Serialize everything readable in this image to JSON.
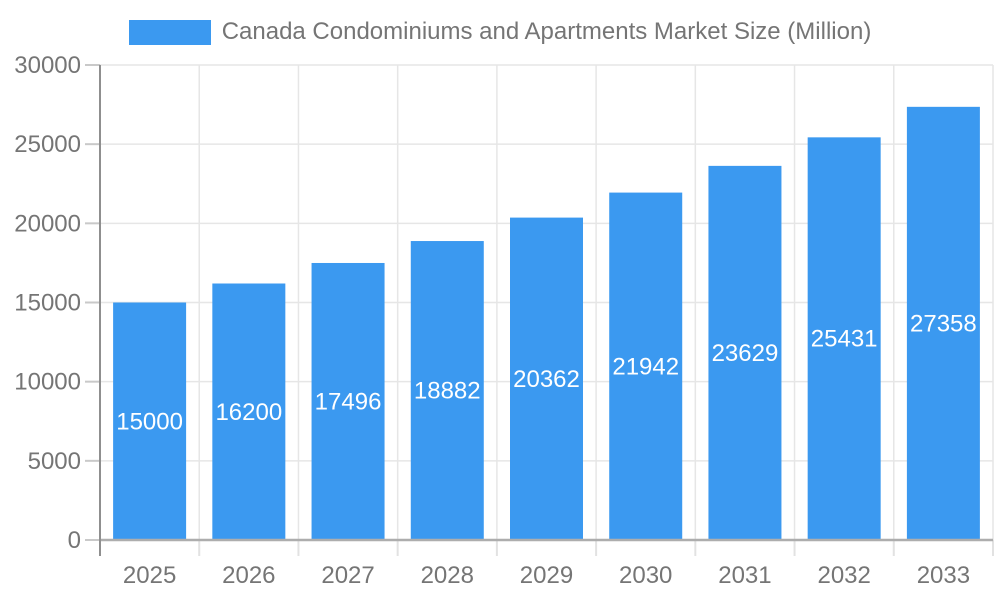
{
  "chart_data": {
    "type": "bar",
    "title": "Canada Condominiums and Apartments Market Size (Million)",
    "categories": [
      "2025",
      "2026",
      "2027",
      "2028",
      "2029",
      "2030",
      "2031",
      "2032",
      "2033"
    ],
    "values": [
      15000,
      16200,
      17496,
      18882,
      20362,
      21942,
      23629,
      25431,
      27358
    ],
    "value_labels": [
      "15000",
      "16200",
      "17496",
      "18882",
      "20362",
      "21942",
      "23629",
      "25431",
      "27358"
    ],
    "xlabel": "",
    "ylabel": "",
    "ylim": [
      0,
      30000
    ],
    "yticks": [
      0,
      5000,
      10000,
      15000,
      20000,
      25000,
      30000
    ],
    "ytick_labels": [
      "0",
      "5000",
      "10000",
      "15000",
      "20000",
      "25000",
      "30000"
    ],
    "grid": true,
    "legend_position": "top-center",
    "colors": {
      "bar": "#3B99F0",
      "value_label": "#FFFFFF",
      "axis_text": "#757575",
      "gridline": "#E6E6E6",
      "axis_line_y": "#8F8F8F",
      "axis_line_x": "#ADADAD",
      "tick_y": "#C9C9C9",
      "tick_x": "#E2E2E2",
      "background": "#FFFFFF"
    }
  }
}
